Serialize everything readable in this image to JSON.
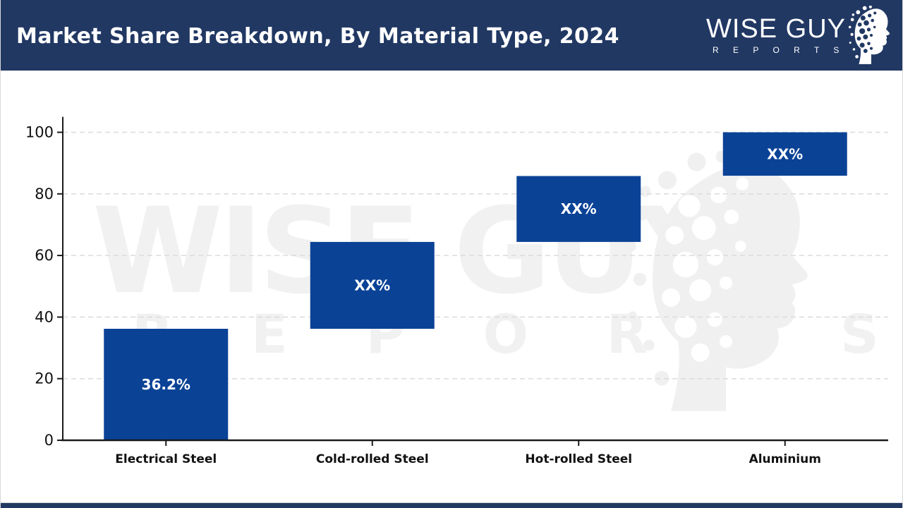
{
  "header": {
    "title": "Market Share Breakdown, By Material Type, 2024",
    "bg_color": "#213863",
    "logo": {
      "line1": "WISE GUY",
      "line2": "R E P O R T S"
    }
  },
  "watermark": {
    "line1": "WISE GUY",
    "line2": "R E P O R T S"
  },
  "footer": {
    "bar_color": "#213863"
  },
  "chart_data": {
    "type": "bar",
    "subtype": "waterfall-stacked-percentage",
    "title": "Market Share Breakdown, By Material Type, 2024",
    "categories": [
      "Electrical Steel",
      "Cold-rolled Steel",
      "Hot-rolled Steel",
      "Aluminium"
    ],
    "segments": [
      {
        "category": "Electrical Steel",
        "from": 0,
        "to": 36.2,
        "label": "36.2%"
      },
      {
        "category": "Cold-rolled Steel",
        "from": 36.2,
        "to": 64.4,
        "label": "XX%"
      },
      {
        "category": "Hot-rolled Steel",
        "from": 64.4,
        "to": 85.8,
        "label": "XX%"
      },
      {
        "category": "Aluminium",
        "from": 85.9,
        "to": 100,
        "label": "XX%"
      }
    ],
    "y_ticks": [
      0,
      20,
      40,
      60,
      80,
      100
    ],
    "ylim": [
      0,
      105
    ],
    "xlabel": "",
    "ylabel": "",
    "grid": "horizontal-dashed",
    "legend": "none",
    "bar_color": "#0A4296",
    "bar_label_color": "#FFFFFF",
    "axis_color": "#1a1a1a",
    "grid_color": "#dbdbdb"
  }
}
